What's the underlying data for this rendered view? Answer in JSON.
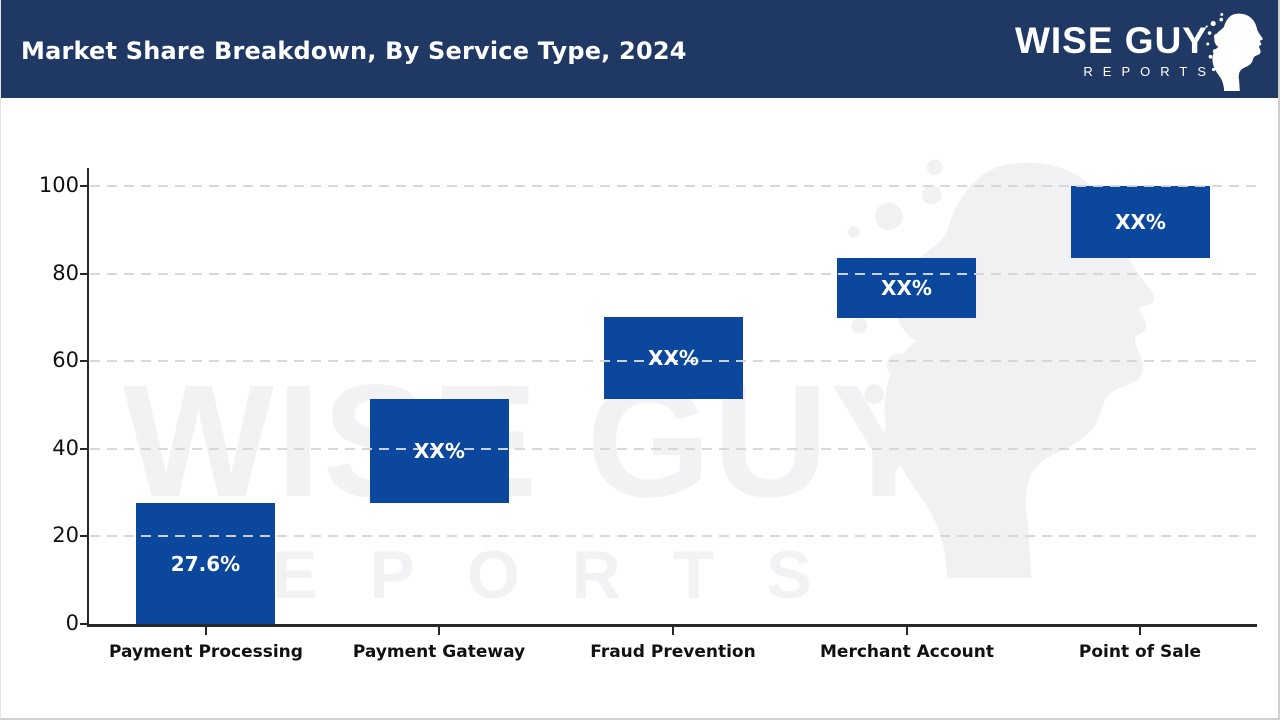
{
  "header": {
    "title": "Market Share Breakdown, By Service Type, 2024",
    "bg_color": "#203864",
    "logo": {
      "wordmark": "WISE GUY",
      "subtext": "REPORTS"
    }
  },
  "watermark": {
    "wordmark": "WISE GUY",
    "subtext": "REPORTS"
  },
  "chart_data": {
    "type": "bar",
    "subtype": "waterfall-stacked-segments",
    "title": "Market Share Breakdown, By Service Type, 2024",
    "categories": [
      "Payment Processing",
      "Payment Gateway",
      "Fraud Prevention",
      "Merchant Account",
      "Point of Sale"
    ],
    "segments": [
      {
        "category": "Payment Processing",
        "label": "27.6%",
        "start": 0,
        "end": 27.6
      },
      {
        "category": "Payment Gateway",
        "label": "XX%",
        "start": 27.6,
        "end": 51.3
      },
      {
        "category": "Fraud Prevention",
        "label": "XX%",
        "start": 51.3,
        "end": 70.0
      },
      {
        "category": "Merchant Account",
        "label": "XX%",
        "start": 70.0,
        "end": 83.6
      },
      {
        "category": "Point of Sale",
        "label": "XX%",
        "start": 83.6,
        "end": 100.0
      }
    ],
    "yticks": [
      0,
      20,
      40,
      60,
      80,
      100
    ],
    "ylim": [
      0,
      104
    ],
    "xlabel": "",
    "ylabel": "",
    "legend": null,
    "grid": "horizontal-dashed",
    "bar_color": "#0a479d",
    "bar_label_color": "#ffffff",
    "axis_color": "#262626",
    "gridline_color": "#d6d6d6",
    "tick_label_color": "#111111"
  }
}
